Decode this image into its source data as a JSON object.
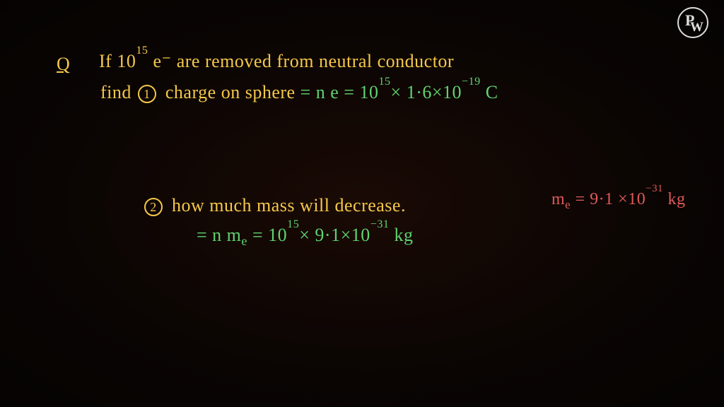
{
  "logo": {
    "p": "P",
    "w": "W"
  },
  "colors": {
    "yellow": "#f5c84a",
    "green": "#5fd370",
    "red": "#e05a5a",
    "bg_center": "#1a0a05",
    "bg_edge": "#050302",
    "logo_border": "#dddddd"
  },
  "question": {
    "label": "Q",
    "line1": {
      "prefix": "If   10",
      "exp1": "15",
      "mid": " e⁻ are removed from neutral conductor"
    },
    "line2": {
      "find": "find   ",
      "circ": "1",
      "label": " charge on sphere ",
      "eq1": "= n e = ",
      "base1": "10",
      "exp1": "15",
      "times": "× 1·6×10",
      "exp2": "−19",
      "unit": "  C"
    },
    "line3": {
      "circ": "2",
      "text": " how much mass will decrease."
    },
    "line4": {
      "eq": "= n m",
      "sub_e": "e",
      "eq2": " = ",
      "base1": "10",
      "exp1": "15",
      "times": "× 9·1×10",
      "exp2": "−31",
      "unit": " kg"
    },
    "me": {
      "lhs": "m",
      "sub": "e",
      "eq": " = 9·1 ×10",
      "exp": "−31",
      "unit": " kg"
    }
  }
}
